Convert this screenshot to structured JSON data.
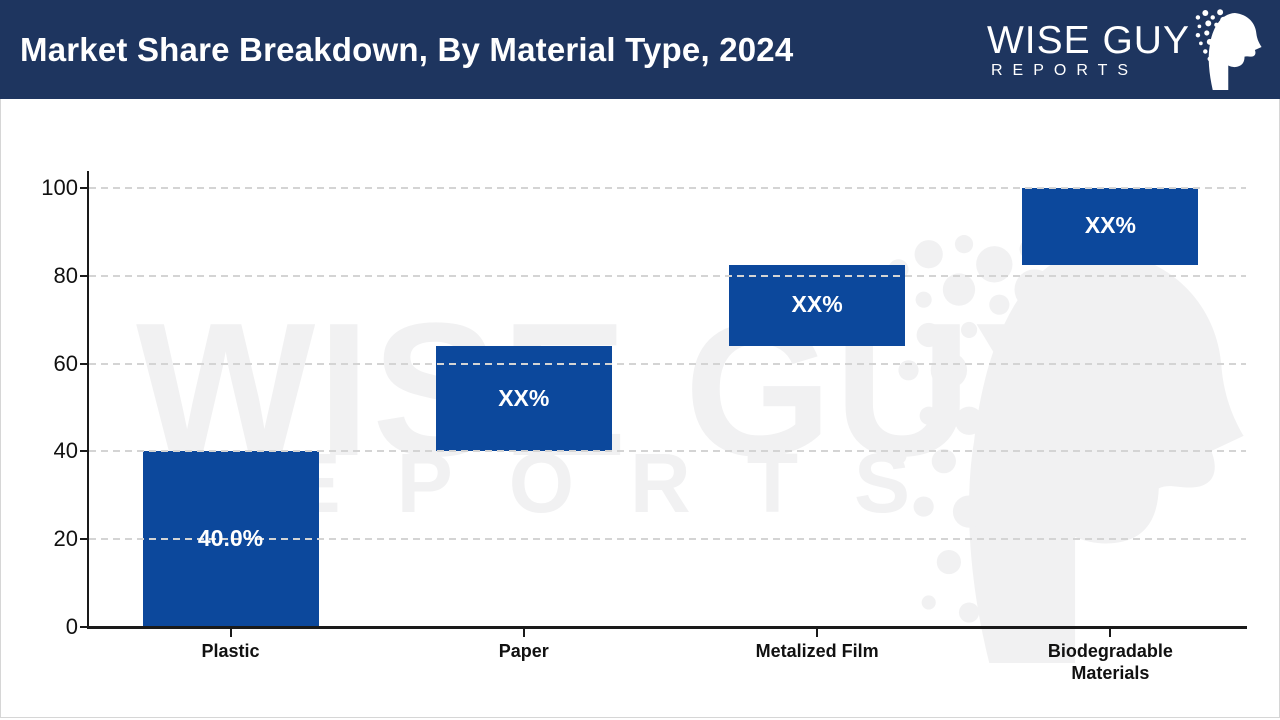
{
  "header": {
    "title": "Market Share Breakdown, By Material Type, 2024",
    "logo": {
      "line1": "WISE GUY",
      "line2": "REPORTS"
    }
  },
  "watermark": {
    "line1": "WISE GUY",
    "line2": "REPORTS"
  },
  "colors": {
    "header_bg": "#1e355f",
    "bar": "#0c489c",
    "grid": "#d4d4d4",
    "axis": "#1a1a1a",
    "tick_text": "#111111",
    "bar_label_text": "#ffffff",
    "watermark": "#f1f1f2"
  },
  "chart_data": {
    "type": "bar",
    "subtype": "waterfall",
    "title": "Market Share Breakdown, By Material Type, 2024",
    "categories": [
      "Plastic",
      "Paper",
      "Metalized Film",
      "Biodegradable Materials"
    ],
    "series": [
      {
        "name": "Market Share",
        "segments": [
          {
            "category": "Plastic",
            "start": 0,
            "end": 40,
            "label": "40.0%"
          },
          {
            "category": "Paper",
            "start": 40,
            "end": 64,
            "label": "XX%"
          },
          {
            "category": "Metalized Film",
            "start": 64,
            "end": 82.5,
            "label": "XX%"
          },
          {
            "category": "Biodegradable Materials",
            "start": 82.5,
            "end": 100,
            "label": "XX%"
          }
        ]
      }
    ],
    "xlabel": "",
    "ylabel": "",
    "ylim": [
      0,
      100
    ],
    "yticks": [
      0,
      20,
      40,
      60,
      80,
      100
    ],
    "grid": "horizontal-dashed",
    "legend": "none"
  }
}
